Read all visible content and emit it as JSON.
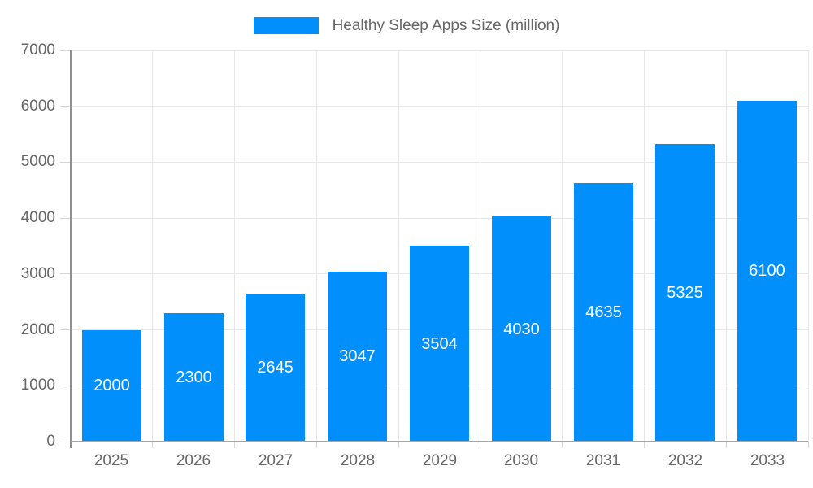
{
  "chart_data": {
    "type": "bar",
    "title": "Healthy Sleep Apps Size (million)",
    "categories": [
      "2025",
      "2026",
      "2027",
      "2028",
      "2029",
      "2030",
      "2031",
      "2032",
      "2033"
    ],
    "values": [
      2000,
      2300,
      2645,
      3047,
      3504,
      4030,
      4635,
      5325,
      6100
    ],
    "xlabel": "",
    "ylabel": "",
    "ylim": [
      0,
      7000
    ],
    "ytick_step": 1000,
    "grid": true,
    "legend_position": "top",
    "colors": {
      "bar": "#008FFB",
      "value_label": "#ffffff",
      "axis_text": "#666666",
      "legend_text": "#666666",
      "gridline": "#e7e7e7",
      "axis_line": "#a6a6a6",
      "y_axis_line": "#8f8f8f",
      "tick": "#d4d4d4",
      "background": "#ffffff"
    }
  }
}
